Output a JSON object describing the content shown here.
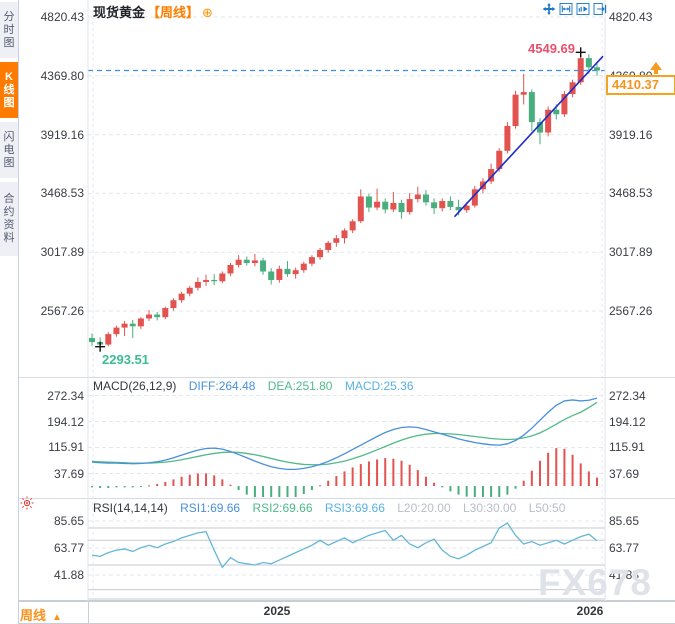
{
  "sidebar": {
    "tabs": [
      {
        "label": "分时图",
        "active": false
      },
      {
        "label": "K线图",
        "active": true
      },
      {
        "label": "闪电图",
        "active": false
      },
      {
        "label": "合约资料",
        "active": false
      }
    ]
  },
  "header": {
    "title": "现货黄金",
    "period": "【周线】",
    "add_icon": "⊕"
  },
  "toolbar": {
    "icons": [
      "pan-icon",
      "zoom-range-icon",
      "play-icon",
      "jump-end-icon"
    ]
  },
  "bottom_bar": {
    "period_tab": "周线",
    "arrow": "▲"
  },
  "watermark": "FX678",
  "chart_data": {
    "type": "candlestick",
    "title": "现货黄金 周线",
    "y_axis_main": [
      4820.43,
      4369.8,
      3919.16,
      3468.53,
      3017.89,
      2567.26
    ],
    "x_axis_labels": [
      {
        "text": "2025"
      },
      {
        "text": "2026"
      }
    ],
    "current_price": 4410.37,
    "current_price_label": "4410.37",
    "markers": {
      "high": {
        "index": 61,
        "value": 4549.69,
        "label": "4549.69"
      },
      "low": {
        "index": 2,
        "value": 2293.51,
        "label": "2293.51"
      }
    },
    "trendline": {
      "from_index": 46,
      "from_value": 3290,
      "to_value": 4520
    },
    "candles": [
      [
        2360,
        2395,
        2300,
        2330
      ],
      [
        2330,
        2365,
        2294,
        2310
      ],
      [
        2310,
        2405,
        2296,
        2390
      ],
      [
        2390,
        2455,
        2370,
        2440
      ],
      [
        2440,
        2490,
        2375,
        2470
      ],
      [
        2470,
        2500,
        2360,
        2450
      ],
      [
        2450,
        2520,
        2430,
        2510
      ],
      [
        2510,
        2575,
        2490,
        2540
      ],
      [
        2540,
        2560,
        2495,
        2520
      ],
      [
        2520,
        2600,
        2505,
        2590
      ],
      [
        2590,
        2665,
        2570,
        2650
      ],
      [
        2650,
        2715,
        2630,
        2700
      ],
      [
        2700,
        2760,
        2680,
        2745
      ],
      [
        2745,
        2825,
        2725,
        2790
      ],
      [
        2790,
        2845,
        2760,
        2805
      ],
      [
        2805,
        2850,
        2765,
        2795
      ],
      [
        2795,
        2870,
        2780,
        2855
      ],
      [
        2855,
        2935,
        2835,
        2920
      ],
      [
        2920,
        2995,
        2900,
        2960
      ],
      [
        2960,
        2985,
        2915,
        2935
      ],
      [
        2935,
        3005,
        2910,
        2955
      ],
      [
        2955,
        2975,
        2845,
        2870
      ],
      [
        2870,
        2895,
        2770,
        2805
      ],
      [
        2805,
        2915,
        2785,
        2890
      ],
      [
        2890,
        2950,
        2830,
        2850
      ],
      [
        2850,
        2900,
        2815,
        2880
      ],
      [
        2880,
        2945,
        2860,
        2930
      ],
      [
        2930,
        2995,
        2910,
        2980
      ],
      [
        2980,
        3050,
        2960,
        3035
      ],
      [
        3035,
        3105,
        3015,
        3090
      ],
      [
        3090,
        3150,
        3060,
        3125
      ],
      [
        3125,
        3200,
        3085,
        3185
      ],
      [
        3185,
        3270,
        3165,
        3255
      ],
      [
        3255,
        3500,
        3240,
        3445
      ],
      [
        3445,
        3465,
        3325,
        3360
      ],
      [
        3360,
        3505,
        3340,
        3405
      ],
      [
        3405,
        3430,
        3315,
        3345
      ],
      [
        3345,
        3480,
        3325,
        3395
      ],
      [
        3395,
        3420,
        3275,
        3325
      ],
      [
        3325,
        3470,
        3305,
        3425
      ],
      [
        3425,
        3520,
        3400,
        3460
      ],
      [
        3460,
        3495,
        3375,
        3400
      ],
      [
        3400,
        3430,
        3310,
        3355
      ],
      [
        3355,
        3430,
        3330,
        3410
      ],
      [
        3410,
        3445,
        3340,
        3365
      ],
      [
        3365,
        3420,
        3300,
        3340
      ],
      [
        3340,
        3400,
        3320,
        3375
      ],
      [
        3375,
        3525,
        3360,
        3500
      ],
      [
        3500,
        3585,
        3470,
        3560
      ],
      [
        3560,
        3695,
        3540,
        3655
      ],
      [
        3655,
        3815,
        3635,
        3795
      ],
      [
        3795,
        4015,
        3775,
        3985
      ],
      [
        3985,
        4255,
        3965,
        4225
      ],
      [
        4225,
        4385,
        4150,
        4245
      ],
      [
        4245,
        4265,
        3945,
        4015
      ],
      [
        4015,
        4045,
        3845,
        3935
      ],
      [
        3935,
        4135,
        3905,
        4110
      ],
      [
        4110,
        4150,
        4035,
        4075
      ],
      [
        4075,
        4255,
        4055,
        4230
      ],
      [
        4230,
        4340,
        4205,
        4320
      ],
      [
        4320,
        4549.69,
        4300,
        4505
      ],
      [
        4505,
        4535,
        4385,
        4435
      ],
      [
        4435,
        4475,
        4370,
        4410.37
      ]
    ],
    "macd": {
      "label": "MACD(26,12,9)",
      "diff_label": "DIFF:264.48",
      "dea_label": "DEA:251.80",
      "macd_label": "MACD:25.36",
      "axis": [
        272.34,
        194.12,
        115.91,
        37.69
      ],
      "diff": [
        72,
        70,
        69,
        69,
        68,
        67,
        68,
        70,
        73,
        78,
        85,
        93,
        101,
        108,
        113,
        114,
        111,
        104,
        95,
        85,
        75,
        66,
        58,
        53,
        50,
        50,
        53,
        58,
        65,
        74,
        85,
        97,
        110,
        123,
        136,
        149,
        161,
        170,
        176,
        178,
        176,
        170,
        163,
        156,
        149,
        142,
        136,
        131,
        127,
        124,
        123,
        127,
        137,
        153,
        174,
        198,
        222,
        243,
        256,
        259,
        256,
        258,
        264.48
      ],
      "dea": [
        74,
        73,
        72,
        71,
        70,
        69,
        69,
        69,
        70,
        72,
        75,
        79,
        84,
        89,
        94,
        98,
        101,
        102,
        101,
        98,
        94,
        89,
        83,
        77,
        72,
        68,
        65,
        64,
        64,
        66,
        70,
        75,
        82,
        90,
        99,
        109,
        119,
        129,
        138,
        146,
        152,
        156,
        158,
        158,
        157,
        155,
        152,
        149,
        146,
        143,
        141,
        140,
        141,
        145,
        151,
        160,
        172,
        186,
        200,
        212,
        222,
        236,
        251.8
      ],
      "hist": [
        -4,
        -6,
        -6,
        -4,
        -4,
        -4,
        -2,
        2,
        6,
        12,
        20,
        28,
        34,
        38,
        38,
        32,
        20,
        4,
        -12,
        -26,
        -38,
        -46,
        -50,
        -48,
        -44,
        -36,
        -24,
        -12,
        2,
        16,
        30,
        44,
        56,
        66,
        74,
        80,
        84,
        82,
        76,
        64,
        48,
        28,
        10,
        -4,
        -16,
        -26,
        -32,
        -36,
        -38,
        -38,
        -36,
        -26,
        -8,
        16,
        46,
        76,
        100,
        114,
        112,
        94,
        68,
        44,
        25.36
      ]
    },
    "rsi": {
      "label": "RSI(14,14,14)",
      "rsi1_label": "RSI1:69.66",
      "rsi2_label": "RSI2:69.66",
      "rsi3_label": "RSI3:69.66",
      "l20_label": "L20:20.00",
      "l30_label": "L30:30.00",
      "l50_label": "L50:50",
      "axis": [
        85.65,
        63.77,
        41.88
      ],
      "hlines": [
        80,
        70,
        50,
        30,
        20
      ],
      "values": [
        58,
        57,
        60,
        62,
        63,
        61,
        64,
        66,
        64,
        67,
        69,
        72,
        74,
        76,
        77,
        62,
        48,
        56,
        52,
        51,
        50,
        52,
        51,
        54,
        57,
        60,
        63,
        66,
        70,
        66,
        69,
        72,
        68,
        71,
        74,
        76,
        78,
        70,
        74,
        67,
        64,
        68,
        71,
        62,
        57,
        55,
        58,
        62,
        65,
        68,
        80,
        84,
        74,
        67,
        69,
        66,
        68,
        70,
        67,
        70,
        73,
        75,
        69.66
      ]
    },
    "colors": {
      "up": "#e25350",
      "down": "#49ae7d",
      "diff_line": "#4a90d9",
      "dea_line": "#53b987",
      "rsi_line": "#63b7d7",
      "trendline": "#1e2cc8",
      "price_line": "#3a8fe8",
      "accent_orange": "#f7931e",
      "grid": "#e4e7ec",
      "panel_border": "#d8dbe1"
    }
  }
}
